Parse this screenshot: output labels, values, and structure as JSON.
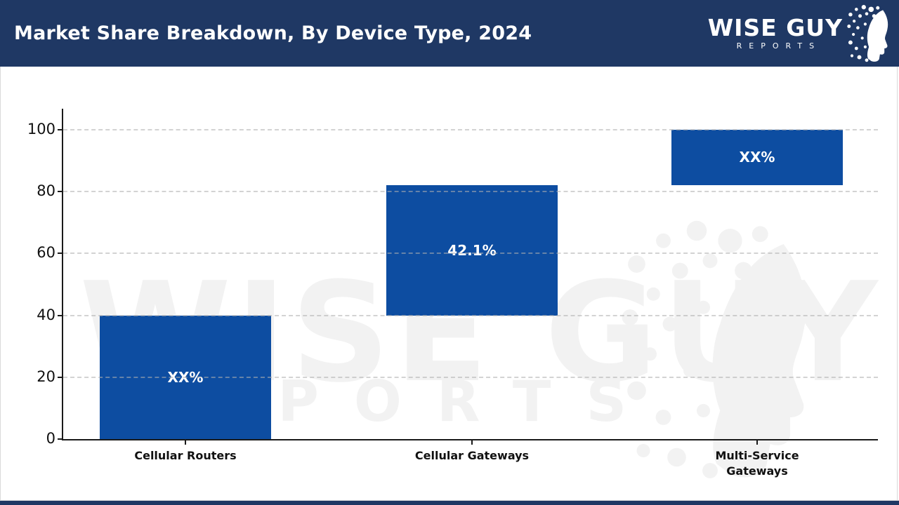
{
  "header": {
    "title": "Market Share Breakdown, By Device Type, 2024",
    "logo": {
      "line1": "WISE GUY",
      "line2": "REPORTS"
    }
  },
  "watermark": {
    "line1": "WISE GUY",
    "line2": "REPORTS"
  },
  "chart_data": {
    "type": "bar",
    "variant": "stacked-waterfall-percentage",
    "title": "Market Share Breakdown, By Device Type, 2024",
    "categories": [
      "Cellular Routers",
      "Cellular Gateways",
      "Multi-Service Gateways"
    ],
    "categories_display": [
      "Cellular Routers",
      "Cellular Gateways",
      "Multi-Service\nGateways"
    ],
    "segments": [
      {
        "category": "Cellular Routers",
        "start": 0,
        "end": 40,
        "label": "XX%"
      },
      {
        "category": "Cellular Gateways",
        "start": 40,
        "end": 82.1,
        "value": 42.1,
        "label": "42.1%"
      },
      {
        "category": "Multi-Service Gateways",
        "start": 82.1,
        "end": 100,
        "label": "XX%"
      }
    ],
    "xlabel": "",
    "ylabel": "",
    "ylim": [
      0,
      100
    ],
    "yticks": [
      0,
      20,
      40,
      60,
      80,
      100
    ],
    "grid": "horizontal-dashed",
    "legend": "none",
    "bar_color": "#0d4da1",
    "bar_label_color": "#ffffff"
  },
  "colors": {
    "header_bg": "#1f3864",
    "footer_bg": "#1f3864",
    "bar": "#0d4da1",
    "axis": "#1a1a1a",
    "gridline": "#d4d4d4",
    "watermark": "#f2f2f2",
    "border": "#d9d9d9"
  }
}
